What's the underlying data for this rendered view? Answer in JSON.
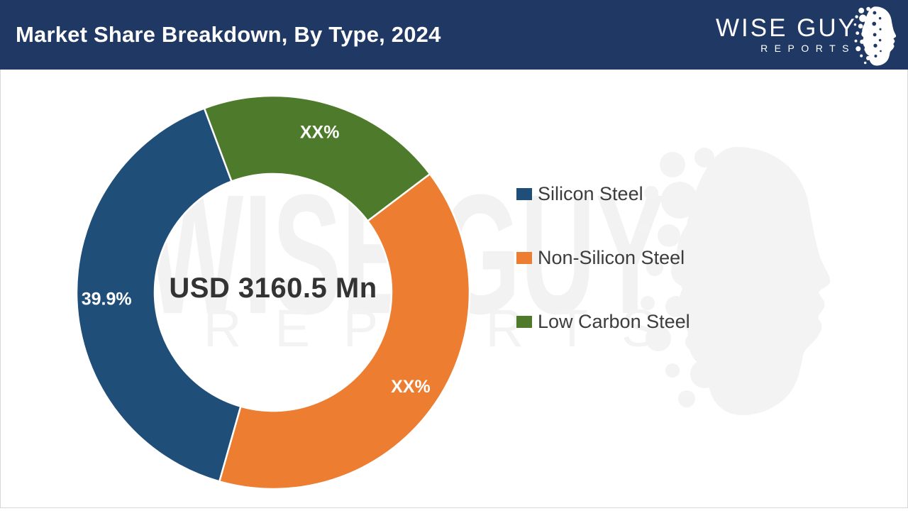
{
  "header": {
    "title": "Market Share Breakdown, By Type, 2024",
    "bg_color": "#1F3864",
    "logo": {
      "line1": "WISE GUY",
      "line2": "REPORTS"
    }
  },
  "watermark": {
    "line1": "WISE GUY",
    "line2": "REPORTS"
  },
  "chart_data": {
    "type": "pie",
    "subtype": "donut",
    "title": "Market Share Breakdown, By Type, 2024",
    "center_label": "USD 3160.5 Mn",
    "start_angle_deg": 110.5,
    "direction": "counterclockwise",
    "legend_position": "right",
    "segments": [
      {
        "label": "Silicon Steel",
        "display_value": "39.9%",
        "value_pct": 39.9,
        "color": "#1F4E79"
      },
      {
        "label": "Non-Silicon Steel",
        "display_value": "XX%",
        "value_pct": 39.7,
        "color": "#ED7D31"
      },
      {
        "label": "Low Carbon Steel",
        "display_value": "XX%",
        "value_pct": 20.4,
        "color": "#4E7B2B"
      }
    ]
  }
}
